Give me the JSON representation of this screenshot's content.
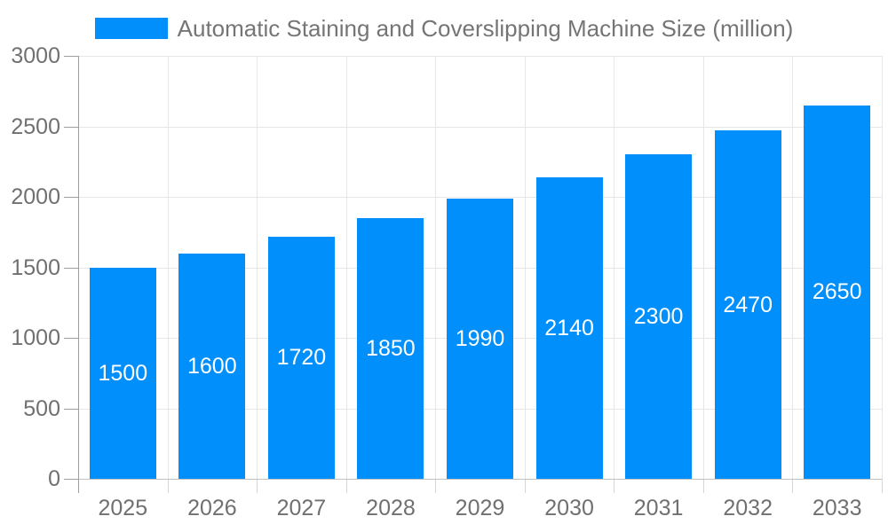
{
  "chart_data": {
    "type": "bar",
    "title": "Automatic Staining and Coverslipping Machine Size (million)",
    "categories": [
      "2025",
      "2026",
      "2027",
      "2028",
      "2029",
      "2030",
      "2031",
      "2032",
      "2033"
    ],
    "values": [
      1500,
      1600,
      1720,
      1850,
      1990,
      2140,
      2300,
      2470,
      2650
    ],
    "value_labels": [
      "1500",
      "1600",
      "1720",
      "1850",
      "1990",
      "2140",
      "2300",
      "2470",
      "2650"
    ],
    "ytick_labels": [
      "0",
      "500",
      "1000",
      "1500",
      "2000",
      "2500",
      "3000"
    ],
    "yticks": [
      0,
      500,
      1000,
      1500,
      2000,
      2500,
      3000
    ],
    "ylim": [
      0,
      3000
    ],
    "xlabel": "",
    "ylabel": "",
    "grid": true,
    "legend_position": "top-center",
    "bar_color": "#008FFB",
    "bar_value_text_color": "#ffffff",
    "axis_text_color": "#707070",
    "legend_text_color": "#757575",
    "gridline_color": "#e6e6e6"
  },
  "legend": {
    "label": "Automatic Staining and Coverslipping Machine Size (million)"
  }
}
